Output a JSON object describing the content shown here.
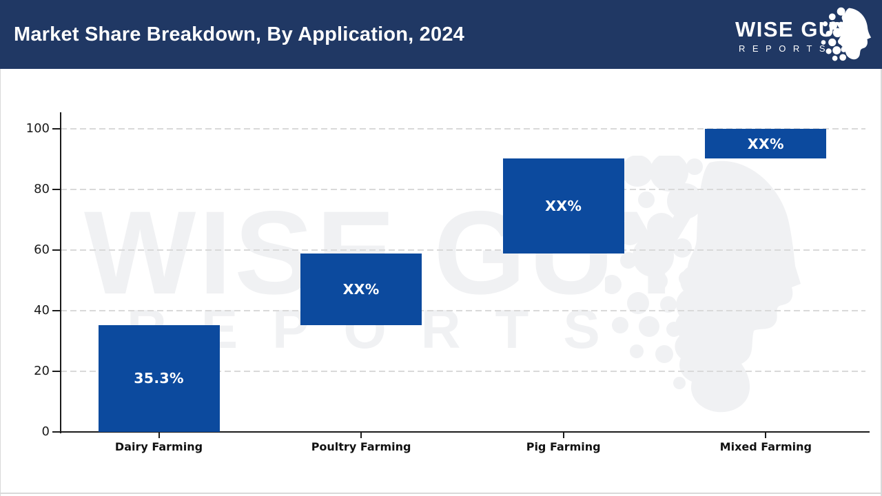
{
  "header": {
    "title": "Market Share Breakdown, By Application, 2024",
    "logo": {
      "line1": "WISE GUY",
      "line2": "REPORTS"
    }
  },
  "watermark": {
    "line1": "WISE GUY",
    "line2": "REPORTS"
  },
  "chart_data": {
    "type": "bar",
    "subtype": "waterfall-floating-segments",
    "title": "Market Share Breakdown, By Application, 2024",
    "categories": [
      "Dairy Farming",
      "Poultry Farming",
      "Pig Farming",
      "Mixed Farming"
    ],
    "segments": [
      {
        "category": "Dairy Farming",
        "start": 0,
        "end": 35.3,
        "label": "35.3%"
      },
      {
        "category": "Poultry Farming",
        "start": 35.3,
        "end": 58.8,
        "label": "XX%"
      },
      {
        "category": "Pig Farming",
        "start": 58.8,
        "end": 90.2,
        "label": "XX%"
      },
      {
        "category": "Mixed Farming",
        "start": 90.2,
        "end": 100,
        "label": "XX%"
      }
    ],
    "xlabel": "",
    "ylabel": "",
    "ylim": [
      0,
      100
    ],
    "yticks": [
      0,
      20,
      40,
      60,
      80,
      100
    ],
    "grid": "horizontal-dashed",
    "legend": "none",
    "colors": {
      "bar": "#0c4a9e",
      "bar_label": "#ffffff",
      "axis": "#1a1a1a",
      "gridline": "#d9d9d9",
      "header_bg": "#203864",
      "header_text": "#ffffff",
      "watermark": "#f0f1f3"
    }
  }
}
